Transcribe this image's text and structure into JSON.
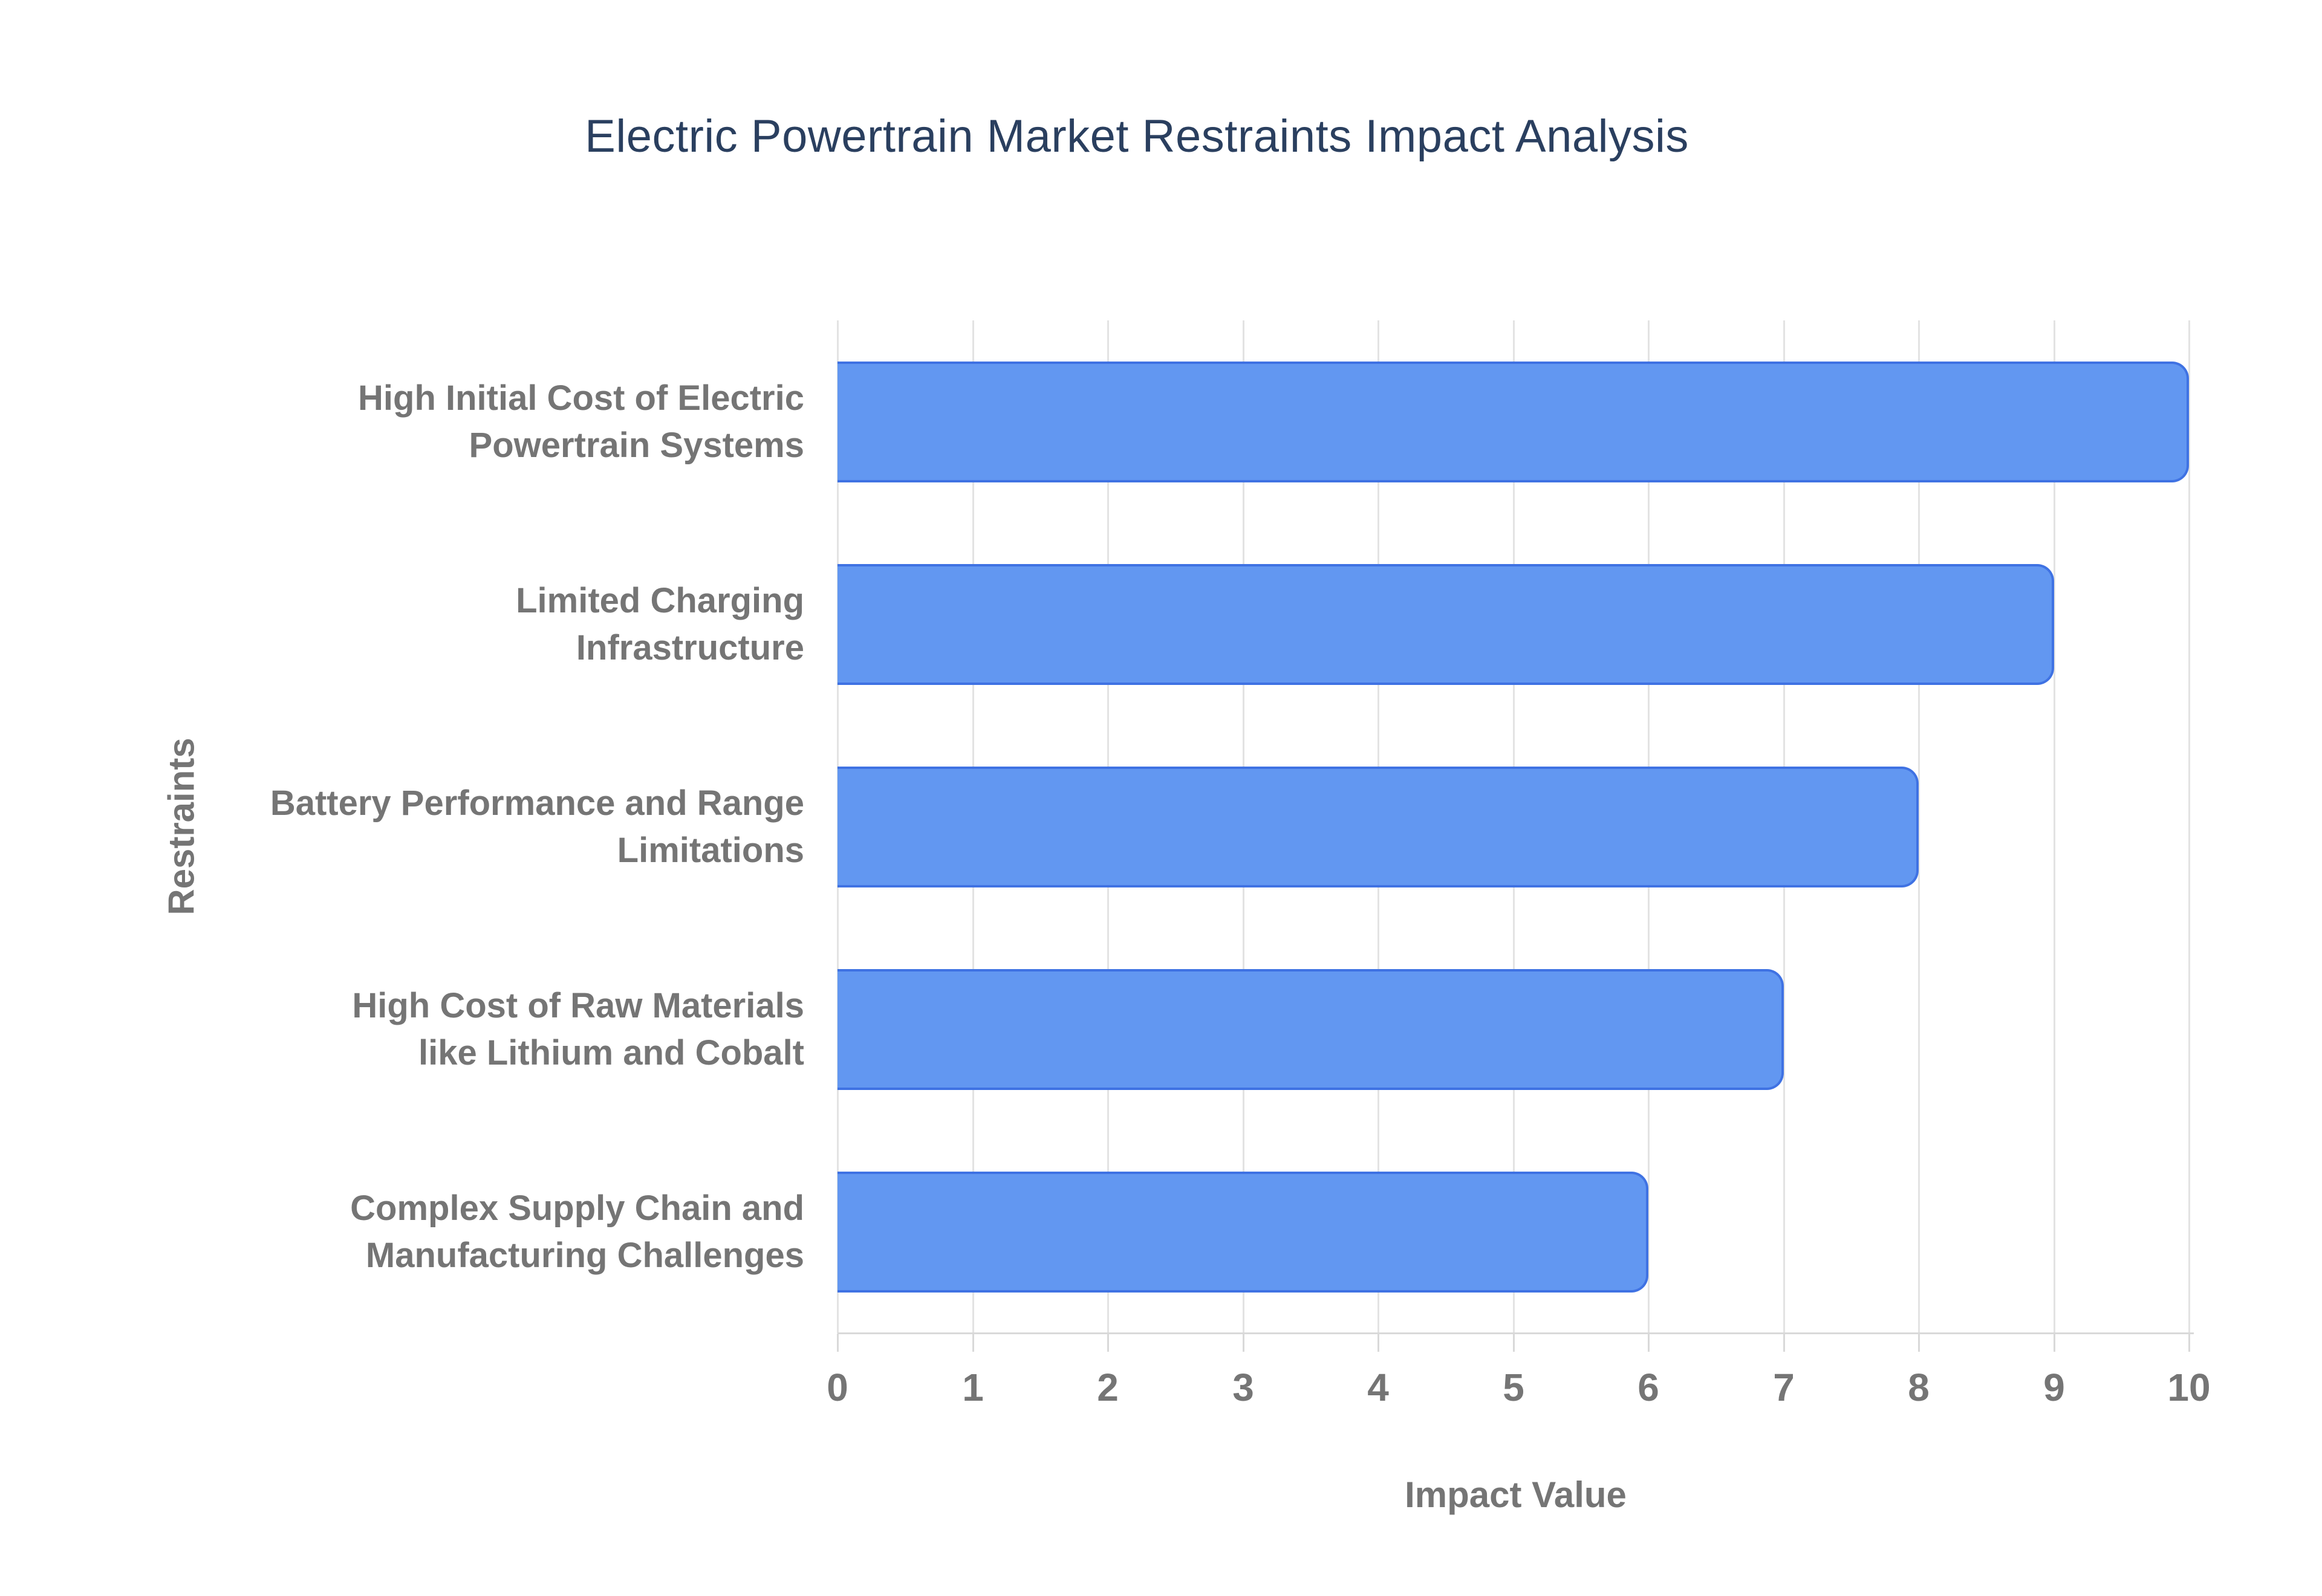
{
  "chart_data": {
    "type": "bar",
    "orientation": "horizontal",
    "title": "Electric Powertrain Market Restraints Impact Analysis",
    "xlabel": "Impact Value",
    "ylabel": "Restraints",
    "categories": [
      "High Initial Cost of Electric Powertrain Systems",
      "Limited Charging Infrastructure",
      "Battery Performance and Range Limitations",
      "High Cost of Raw Materials like Lithium and Cobalt",
      "Complex Supply Chain and Manufacturing Challenges"
    ],
    "category_lines": [
      [
        "High Initial Cost of Electric",
        "Powertrain Systems"
      ],
      [
        "Limited Charging",
        "Infrastructure"
      ],
      [
        "Battery Performance and Range",
        "Limitations"
      ],
      [
        "High Cost of Raw Materials",
        "like Lithium and Cobalt"
      ],
      [
        "Complex Supply Chain and",
        "Manufacturing Challenges"
      ]
    ],
    "values": [
      10,
      9,
      8,
      7,
      6
    ],
    "xlim": [
      0,
      10
    ],
    "xtick_labels": [
      "0",
      "1",
      "2",
      "3",
      "4",
      "5",
      "6",
      "7",
      "8",
      "9",
      "10"
    ],
    "grid": "vertical",
    "legend": "none",
    "colors": {
      "bar_fill": "#6297f1",
      "bar_border": "#3f72e3",
      "title_text": "#2a3f5f",
      "axis_text": "#757575",
      "gridline": "#e3e3e3",
      "axis_line": "#d9d9d9",
      "background": "#ffffff"
    }
  }
}
